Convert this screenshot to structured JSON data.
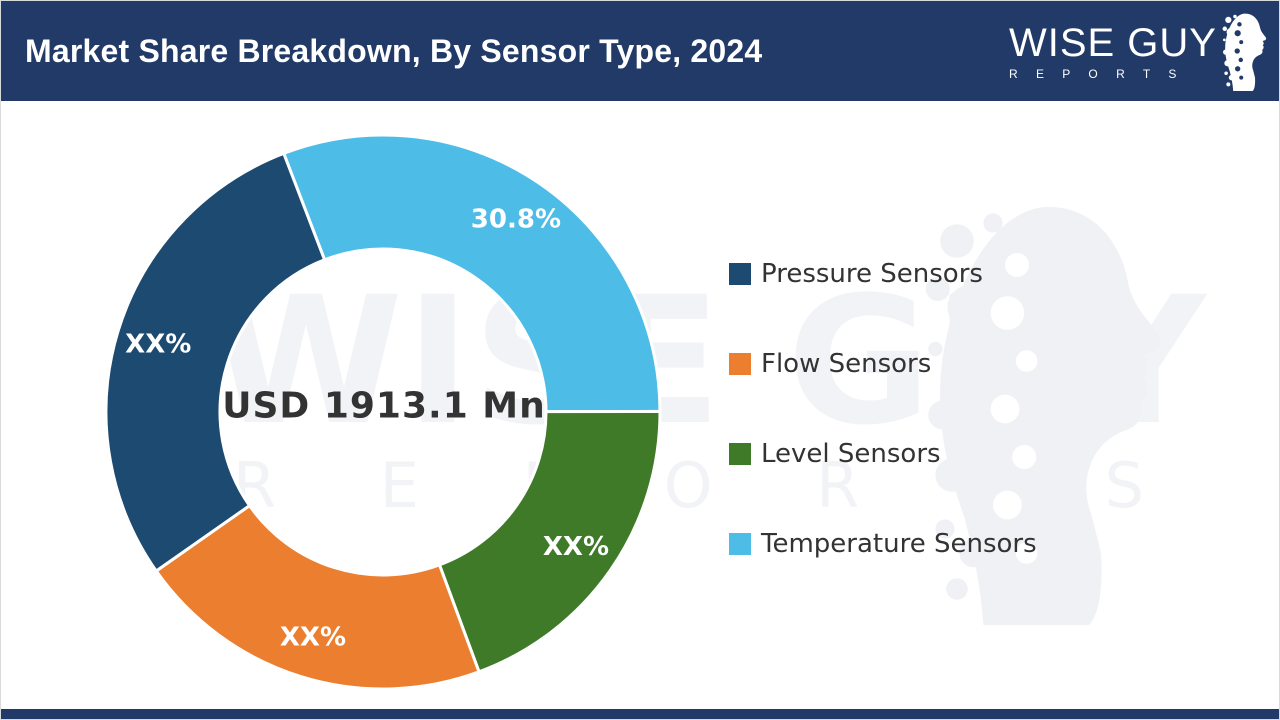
{
  "header": {
    "title": "Market Share Breakdown, By Sensor Type, 2024",
    "logo": {
      "line1": "WISE GUY",
      "line2": "R E P O R T S"
    }
  },
  "watermark": {
    "line1": "WISE GUY",
    "line2": "R E P O R T S"
  },
  "chart_data": {
    "type": "pie",
    "subtype": "donut",
    "title": "Market Share Breakdown, By Sensor Type, 2024",
    "center_label": "USD 1913.1 Mn",
    "legend_position": "right",
    "start_angle_deg": -21,
    "direction": "clockwise",
    "note": "Only the Temperature Sensors share is printed (30.8%); other slices display XX% and their value_pct is estimated from arc angles.",
    "segments": [
      {
        "label": "Pressure Sensors",
        "color": "#1D4A70",
        "value_pct": 28.9,
        "display_value": "XX%"
      },
      {
        "label": "Flow Sensors",
        "color": "#EB7E2F",
        "value_pct": 20.9,
        "display_value": "XX%"
      },
      {
        "label": "Level Sensors",
        "color": "#3E7A28",
        "value_pct": 19.4,
        "display_value": "XX%"
      },
      {
        "label": "Temperature Sensors",
        "color": "#4DBDE8",
        "value_pct": 30.8,
        "display_value": "30.8%"
      }
    ],
    "draw_order": [
      "Temperature Sensors",
      "Level Sensors",
      "Flow Sensors",
      "Pressure Sensors"
    ]
  },
  "colors": {
    "header_bg": "#223A67",
    "footer_bg": "#223A67",
    "center_text": "#333333",
    "legend_text": "#333333",
    "watermark": "#f2f3f6"
  }
}
